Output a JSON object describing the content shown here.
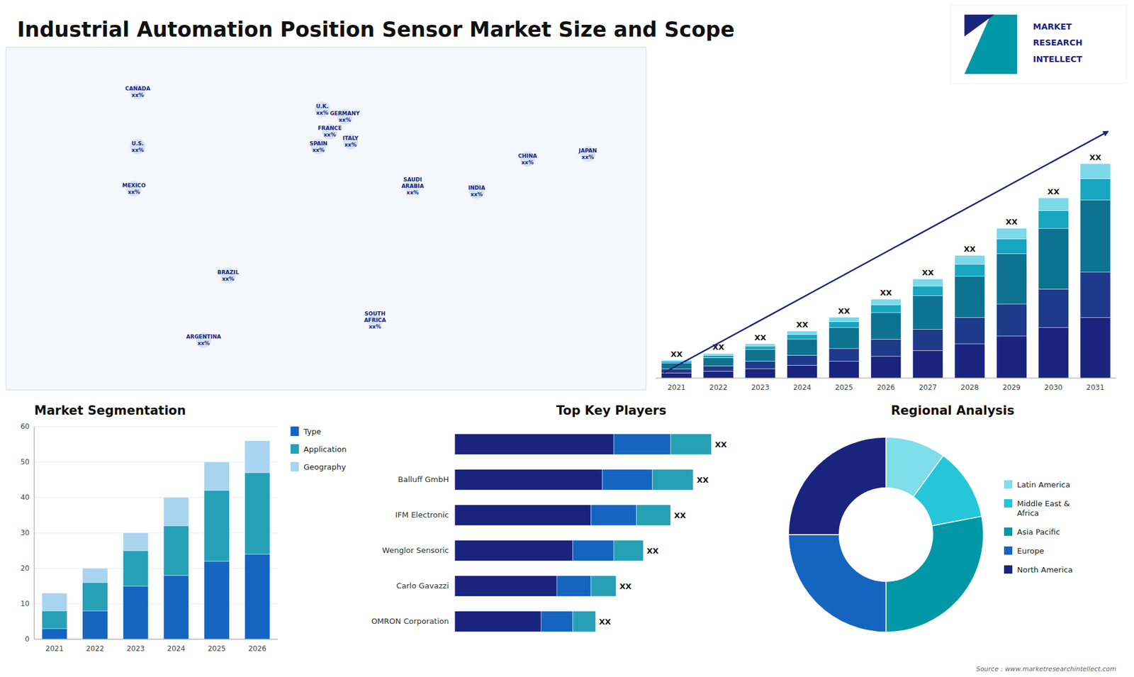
{
  "chart_data": [
    {
      "type": "bar",
      "stacked": true,
      "title": "Industrial Automation Position Sensor Market Size and Scope",
      "categories": [
        "2021",
        "2022",
        "2023",
        "2024",
        "2025",
        "2026",
        "2027",
        "2028",
        "2029",
        "2030",
        "2031"
      ],
      "series": [
        {
          "color": "#1a237e",
          "values": [
            1.5,
            2.0,
            2.8,
            3.8,
            5.0,
            6.5,
            8.2,
            10.2,
            12.5,
            15.0,
            18.0
          ]
        },
        {
          "color": "#1e3a8a",
          "values": [
            1.2,
            1.6,
            2.2,
            3.0,
            3.8,
            5.0,
            6.3,
            7.8,
            9.5,
            11.5,
            13.5
          ]
        },
        {
          "color": "#0d7390",
          "values": [
            1.8,
            2.5,
            3.5,
            4.8,
            6.2,
            8.0,
            10.0,
            12.3,
            15.0,
            18.0,
            21.5
          ]
        },
        {
          "color": "#17a5c0",
          "values": [
            0.5,
            0.7,
            1.0,
            1.4,
            1.8,
            2.3,
            2.9,
            3.6,
            4.4,
            5.3,
            6.3
          ]
        },
        {
          "color": "#7dd8ea",
          "values": [
            0.3,
            0.5,
            0.7,
            1.0,
            1.3,
            1.7,
            2.1,
            2.6,
            3.2,
            3.8,
            4.5
          ]
        }
      ],
      "ylim": [
        0,
        86.13
      ],
      "tick_labels": "x",
      "annotations": [
        "XX",
        "XX",
        "XX",
        "XX",
        "XX",
        "XX",
        "XX",
        "XX",
        "XX",
        "XX",
        "XX"
      ]
    },
    {
      "type": "scatter",
      "categories": [
        "CANADA\nxx%",
        "U.S.\nxx%",
        "MEXICO\nxx%",
        "BRAZIL\nxx%",
        "ARGENTINA\nxx%",
        "U.K.\nxx%",
        "FRANCE\nxx%",
        "SPAIN\nxx%",
        "GERMANY\nxx%",
        "ITALY\nxx%",
        "SAUDI\nARABIA\nxx%",
        "SOUTH\nAFRICA\nxx%",
        "CHINA\nxx%",
        "INDIA\nxx%",
        "JAPAN\nxx%"
      ],
      "x": [
        -100,
        -100,
        -102,
        -52,
        -65,
        -2,
        2,
        -4,
        10,
        13,
        46,
        26,
        107,
        80,
        139
      ],
      "values": [
        62,
        40,
        23,
        -12,
        -38,
        55,
        46,
        40,
        52,
        42,
        24,
        -30,
        35,
        22,
        37
      ],
      "xlim": [
        -170,
        170
      ],
      "ylim": [
        -58,
        80
      ],
      "tick_labels": false,
      "annotations": [
        "MARKET",
        "RESEARCH",
        "INTELLECT"
      ]
    },
    {
      "type": "bar",
      "stacked": true,
      "title": "Market Segmentation",
      "categories": [
        "2021",
        "2022",
        "2023",
        "2024",
        "2025",
        "2026"
      ],
      "series": [
        {
          "name": "Type",
          "color": "#1565c0",
          "values": [
            3,
            8,
            15,
            18,
            22,
            24
          ]
        },
        {
          "name": "Application",
          "color": "#26a0b5",
          "values": [
            5,
            8,
            10,
            14,
            20,
            23
          ]
        },
        {
          "name": "Geography",
          "color": "#a8d4f0",
          "values": [
            5,
            4,
            5,
            8,
            8,
            9
          ]
        }
      ],
      "ylim": [
        0,
        60
      ],
      "yticks": [
        0,
        10,
        20,
        30,
        40,
        50,
        60
      ],
      "grid": true,
      "legend": "right"
    },
    {
      "type": "bar",
      "orientation": "horizontal",
      "stacked": true,
      "title": "Top Key Players",
      "categories": [
        null,
        "Balluff GmbH",
        "IFM Electronic",
        "Wenglor Sensoric",
        "Carlo Gavazzi",
        "OMRON Corporation"
      ],
      "series": [
        {
          "color": "#1a237e",
          "values": [
            7.0,
            6.5,
            6.0,
            5.2,
            4.5,
            3.8
          ]
        },
        {
          "color": "#1565c0",
          "values": [
            2.5,
            2.2,
            2.0,
            1.8,
            1.5,
            1.4
          ]
        },
        {
          "color": "#26a0b5",
          "values": [
            1.8,
            1.8,
            1.5,
            1.3,
            1.1,
            1.0
          ]
        }
      ],
      "xlim": [
        0,
        13.786
      ],
      "tick_labels": "y",
      "annotations": [
        "XX",
        "XX",
        "XX",
        "XX",
        "XX",
        "XX"
      ]
    },
    {
      "type": "donut",
      "title": "Regional Analysis",
      "categories": [
        "Latin America",
        "Middle East &\nAfrica",
        "Asia Pacific",
        "Europe",
        "North America"
      ],
      "values": [
        10,
        12,
        28,
        25,
        25
      ],
      "colors": [
        "#80deea",
        "#26c6da",
        "#0097a7",
        "#1565c0",
        "#1a237e"
      ],
      "legend": "right",
      "annotations": [
        "Source : www.marketresearchintellect.com"
      ]
    }
  ]
}
